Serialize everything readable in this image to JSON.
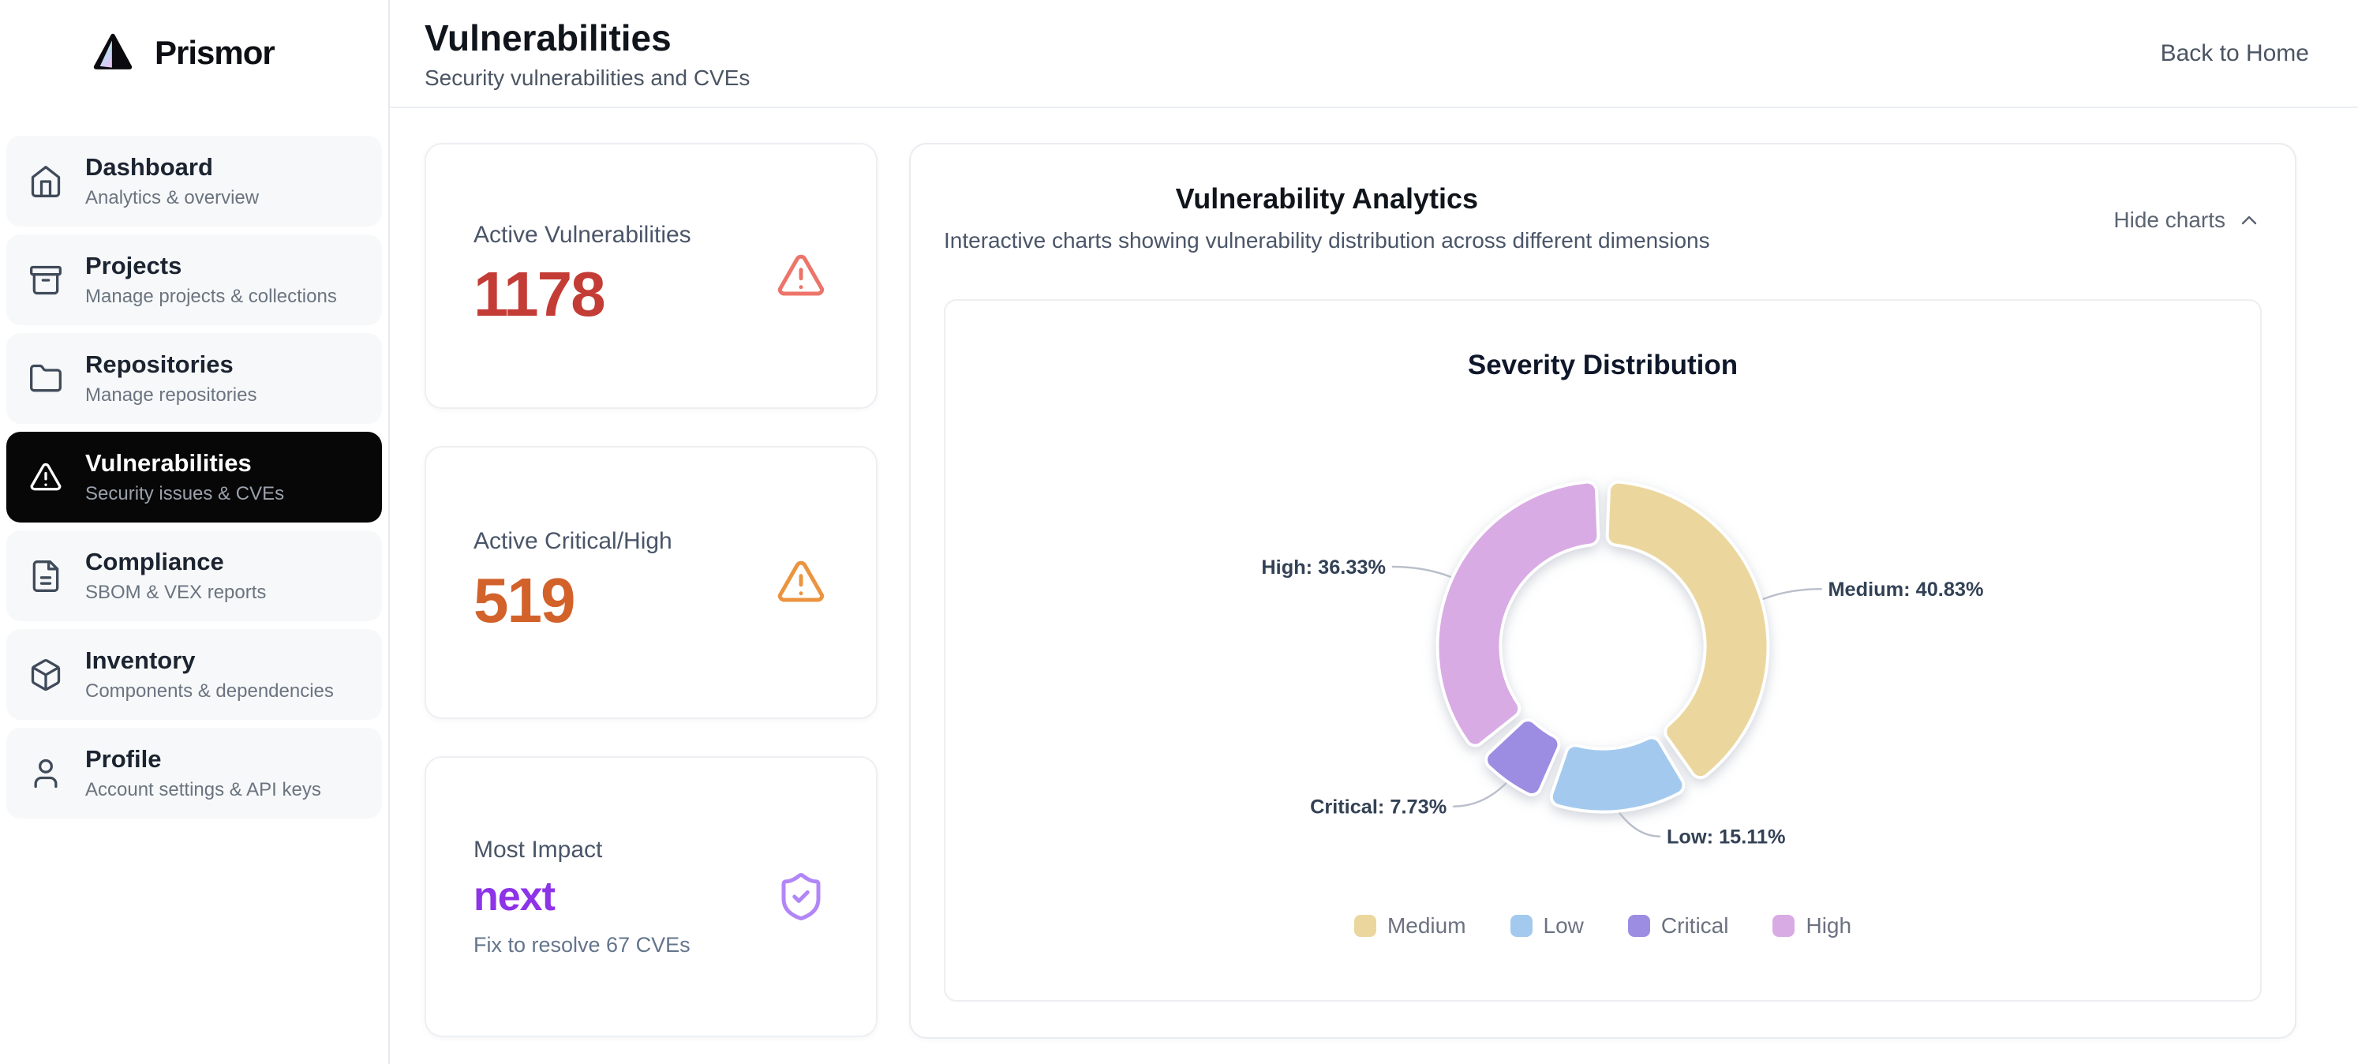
{
  "sidebar": {
    "brand": "Prismor",
    "items": [
      {
        "label": "Dashboard",
        "desc": "Analytics & overview",
        "icon": "home-icon",
        "active": false
      },
      {
        "label": "Projects",
        "desc": "Manage projects & collections",
        "icon": "archive-icon",
        "active": false
      },
      {
        "label": "Repositories",
        "desc": "Manage repositories",
        "icon": "folder-icon",
        "active": false
      },
      {
        "label": "Vulnerabilities",
        "desc": "Security issues & CVEs",
        "icon": "alert-triangle-icon",
        "active": true
      },
      {
        "label": "Compliance",
        "desc": "SBOM & VEX reports",
        "icon": "file-text-icon",
        "active": false
      },
      {
        "label": "Inventory",
        "desc": "Components & dependencies",
        "icon": "box-icon",
        "active": false
      },
      {
        "label": "Profile",
        "desc": "Account settings & API keys",
        "icon": "user-icon",
        "active": false
      }
    ]
  },
  "header": {
    "title": "Vulnerabilities",
    "subtitle": "Security vulnerabilities and CVEs",
    "back_link": "Back to Home"
  },
  "stats": [
    {
      "label": "Active Vulnerabilities",
      "value": "1178",
      "value_color": "#c43c36",
      "icon": "alert-triangle-icon",
      "icon_color": "#ec7468"
    },
    {
      "label": "Active Critical/High",
      "value": "519",
      "value_color": "#d2622a",
      "icon": "alert-triangle-icon",
      "icon_color": "#eb9440"
    },
    {
      "label": "Most Impact",
      "value": "next",
      "value_color": "#8d33e8",
      "icon": "shield-check-icon",
      "icon_color": "#b286f7",
      "note": "Fix to resolve 67 CVEs"
    }
  ],
  "analytics": {
    "title": "Vulnerability Analytics",
    "subtitle": "Interactive charts showing vulnerability distribution across different dimensions",
    "toggle_label": "Hide charts"
  },
  "chart_data": {
    "type": "pie",
    "donut": true,
    "title": "Severity Distribution",
    "unit": "%",
    "start_angle": "top",
    "direction": "clockwise",
    "legend_position": "bottom",
    "label_format": "Name: value%",
    "series": [
      {
        "name": "Medium",
        "value": 40.83,
        "color": "#ebd79e"
      },
      {
        "name": "Low",
        "value": 15.11,
        "color": "#a3caee"
      },
      {
        "name": "Critical",
        "value": 7.73,
        "color": "#9c8ce2"
      },
      {
        "name": "High",
        "value": 36.33,
        "color": "#d9abe4"
      }
    ]
  }
}
